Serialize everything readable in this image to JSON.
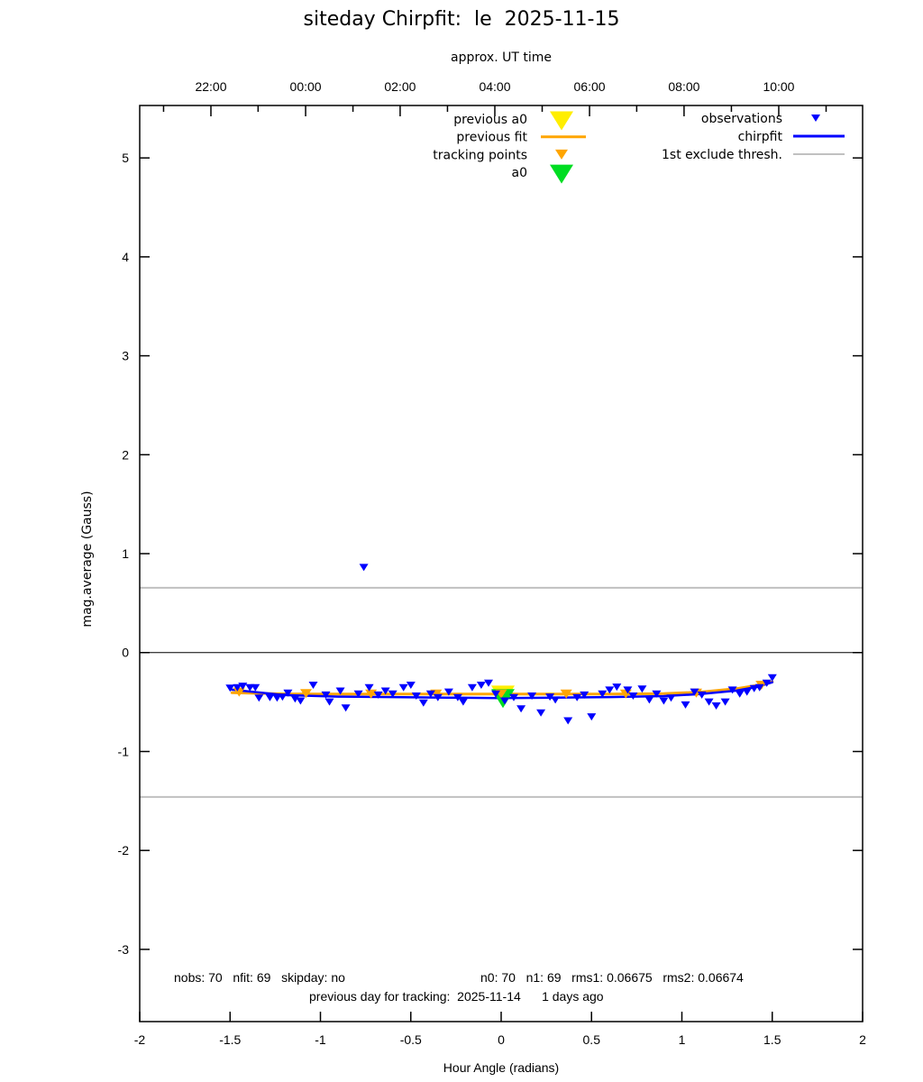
{
  "title": "siteday Chirpfit:  le  2025-11-15",
  "axes": {
    "top_label": "approx. UT time",
    "x_label": "Hour Angle (radians)",
    "y_label": "mag.average (Gauss)",
    "x_ticks": [
      {
        "label": "-2",
        "x": -2
      },
      {
        "label": "-1.5",
        "x": -1.5
      },
      {
        "label": "-1",
        "x": -1
      },
      {
        "label": "-0.5",
        "x": -0.5
      },
      {
        "label": "0",
        "x": 0
      },
      {
        "label": "0.5",
        "x": 0.5
      },
      {
        "label": "1",
        "x": 1
      },
      {
        "label": "1.5",
        "x": 1.5
      },
      {
        "label": "2",
        "x": 2
      }
    ],
    "y_ticks": [
      {
        "label": "-3",
        "y": -3
      },
      {
        "label": "-2",
        "y": -2
      },
      {
        "label": "-1",
        "y": -1
      },
      {
        "label": "0",
        "y": 0
      },
      {
        "label": "1",
        "y": 1
      },
      {
        "label": "2",
        "y": 2
      },
      {
        "label": "3",
        "y": 3
      },
      {
        "label": "4",
        "y": 4
      },
      {
        "label": "5",
        "y": 5
      }
    ],
    "ut_major_ticks": [
      {
        "label": "22:00",
        "x": -1.606
      },
      {
        "label": "00:00",
        "x": -1.082
      },
      {
        "label": "02:00",
        "x": -0.559
      },
      {
        "label": "04:00",
        "x": -0.035
      },
      {
        "label": "06:00",
        "x": 0.489
      },
      {
        "label": "08:00",
        "x": 1.012
      },
      {
        "label": "10:00",
        "x": 1.536
      }
    ],
    "ut_minor_ticks": [
      -1.868,
      -1.345,
      -0.82,
      -0.297,
      0.227,
      0.75,
      1.274,
      1.798
    ],
    "xlim": [
      -2,
      2
    ],
    "ylim": [
      -3.73,
      5.53
    ]
  },
  "legend": {
    "left": [
      {
        "label": "previous a0",
        "marker": "triangle-large",
        "color": "#ffee00",
        "name": "previous-a0"
      },
      {
        "label": "previous fit",
        "marker": "line",
        "color": "#ffa500",
        "name": "previous-fit"
      },
      {
        "label": "tracking points",
        "marker": "triangle-medium",
        "color": "#ffa500",
        "name": "tracking-points"
      },
      {
        "label": "a0",
        "marker": "triangle-large",
        "color": "#00dd22",
        "name": "a0"
      }
    ],
    "right": [
      {
        "label": "observations",
        "marker": "triangle-small",
        "color": "#0000ff",
        "name": "observations"
      },
      {
        "label": "chirpfit",
        "marker": "line",
        "color": "#0000ff",
        "name": "chirpfit"
      },
      {
        "label": "1st exclude thresh.",
        "marker": "line-thin",
        "color": "#c0c0c0",
        "name": "exclude-threshold"
      }
    ]
  },
  "stats": {
    "line1_left": "nobs: 70   nfit: 69   skipday: no",
    "line1_right": "n0: 70   n1: 69   rms1: 0.06675   rms2: 0.06674",
    "line2": "previous day for tracking:  2025-11-14      1 days ago"
  },
  "colors": {
    "observations": "#0000ff",
    "chirpfit": "#0000ff",
    "previous_fit": "#ffa500",
    "tracking_points": "#ffa500",
    "previous_a0": "#ffee00",
    "a0": "#00dd22",
    "exclude_threshold": "#c0c0c0",
    "zero_line": "#000000",
    "axis": "#000000"
  },
  "chart_data": {
    "type": "scatter",
    "title": "siteday Chirpfit:  le  2025-11-15",
    "xlabel": "Hour Angle (radians)",
    "ylabel": "mag.average (Gauss)",
    "x2label": "approx. UT time",
    "xlim": [
      -2,
      2
    ],
    "ylim": [
      -3.73,
      5.53
    ],
    "grid": false,
    "legend_position": "top-inside",
    "zero_line_y": 0,
    "exclude_threshold_y": [
      0.655,
      -1.46
    ],
    "series": [
      {
        "name": "observations",
        "type": "scatter",
        "marker": "triangle-down-small",
        "color": "#0000ff",
        "points": [
          [
            -1.5,
            -0.36
          ],
          [
            -1.46,
            -0.355
          ],
          [
            -1.43,
            -0.34
          ],
          [
            -1.39,
            -0.355
          ],
          [
            -1.36,
            -0.355
          ],
          [
            -1.34,
            -0.46
          ],
          [
            -1.28,
            -0.455
          ],
          [
            -1.24,
            -0.46
          ],
          [
            -1.21,
            -0.45
          ],
          [
            -1.18,
            -0.41
          ],
          [
            -1.14,
            -0.47
          ],
          [
            -1.11,
            -0.49
          ],
          [
            -1.04,
            -0.33
          ],
          [
            -0.97,
            -0.43
          ],
          [
            -0.95,
            -0.5
          ],
          [
            -0.89,
            -0.39
          ],
          [
            -0.86,
            -0.56
          ],
          [
            -0.79,
            -0.42
          ],
          [
            -0.76,
            0.86
          ],
          [
            -0.73,
            -0.355
          ],
          [
            -0.68,
            -0.43
          ],
          [
            -0.64,
            -0.39
          ],
          [
            -0.6,
            -0.42
          ],
          [
            -0.54,
            -0.355
          ],
          [
            -0.5,
            -0.33
          ],
          [
            -0.47,
            -0.44
          ],
          [
            -0.43,
            -0.51
          ],
          [
            -0.39,
            -0.42
          ],
          [
            -0.35,
            -0.455
          ],
          [
            -0.29,
            -0.4
          ],
          [
            -0.24,
            -0.455
          ],
          [
            -0.21,
            -0.5
          ],
          [
            -0.16,
            -0.355
          ],
          [
            -0.11,
            -0.33
          ],
          [
            -0.07,
            -0.31
          ],
          [
            -0.03,
            -0.42
          ],
          [
            0.02,
            -0.49
          ],
          [
            0.07,
            -0.455
          ],
          [
            0.11,
            -0.57
          ],
          [
            0.17,
            -0.44
          ],
          [
            0.22,
            -0.61
          ],
          [
            0.27,
            -0.45
          ],
          [
            0.3,
            -0.48
          ],
          [
            0.37,
            -0.69
          ],
          [
            0.42,
            -0.455
          ],
          [
            0.46,
            -0.43
          ],
          [
            0.5,
            -0.65
          ],
          [
            0.56,
            -0.42
          ],
          [
            0.6,
            -0.38
          ],
          [
            0.64,
            -0.35
          ],
          [
            0.7,
            -0.38
          ],
          [
            0.73,
            -0.44
          ],
          [
            0.78,
            -0.37
          ],
          [
            0.82,
            -0.48
          ],
          [
            0.86,
            -0.42
          ],
          [
            0.9,
            -0.49
          ],
          [
            0.94,
            -0.46
          ],
          [
            1.02,
            -0.53
          ],
          [
            1.07,
            -0.4
          ],
          [
            1.11,
            -0.43
          ],
          [
            1.15,
            -0.5
          ],
          [
            1.19,
            -0.54
          ],
          [
            1.24,
            -0.5
          ],
          [
            1.28,
            -0.38
          ],
          [
            1.32,
            -0.42
          ],
          [
            1.36,
            -0.4
          ],
          [
            1.4,
            -0.365
          ],
          [
            1.43,
            -0.355
          ],
          [
            1.47,
            -0.31
          ],
          [
            1.5,
            -0.255
          ]
        ]
      },
      {
        "name": "chirpfit",
        "type": "line",
        "color": "#0000ff",
        "width": 2.5,
        "points": [
          [
            -1.49,
            -0.375
          ],
          [
            -1.2,
            -0.43
          ],
          [
            -0.9,
            -0.445
          ],
          [
            -0.6,
            -0.45
          ],
          [
            -0.3,
            -0.455
          ],
          [
            0,
            -0.46
          ],
          [
            0.3,
            -0.455
          ],
          [
            0.6,
            -0.45
          ],
          [
            0.9,
            -0.44
          ],
          [
            1.1,
            -0.42
          ],
          [
            1.3,
            -0.385
          ],
          [
            1.42,
            -0.345
          ],
          [
            1.5,
            -0.3
          ]
        ]
      },
      {
        "name": "previous fit",
        "type": "line",
        "color": "#ffa500",
        "width": 3,
        "points": [
          [
            -1.49,
            -0.405
          ],
          [
            -1.2,
            -0.418
          ],
          [
            -0.9,
            -0.42
          ],
          [
            -0.6,
            -0.42
          ],
          [
            -0.3,
            -0.42
          ],
          [
            0,
            -0.42
          ],
          [
            0.3,
            -0.42
          ],
          [
            0.6,
            -0.42
          ],
          [
            0.9,
            -0.415
          ],
          [
            1.1,
            -0.4
          ],
          [
            1.3,
            -0.365
          ],
          [
            1.42,
            -0.33
          ],
          [
            1.5,
            -0.295
          ]
        ]
      },
      {
        "name": "tracking points",
        "type": "scatter",
        "marker": "triangle-down-medium",
        "color": "#ffa500",
        "points": [
          [
            -1.45,
            -0.4
          ],
          [
            -1.08,
            -0.415
          ],
          [
            -0.72,
            -0.42
          ],
          [
            -0.36,
            -0.42
          ],
          [
            0.0,
            -0.42
          ],
          [
            0.36,
            -0.42
          ],
          [
            0.69,
            -0.42
          ],
          [
            1.08,
            -0.41
          ],
          [
            1.44,
            -0.33
          ]
        ]
      },
      {
        "name": "previous a0",
        "type": "scatter",
        "marker": "triangle-down-large",
        "color": "#ffee00",
        "points": [
          [
            0.01,
            -0.43
          ]
        ]
      },
      {
        "name": "a0",
        "type": "scatter",
        "marker": "triangle-down-large",
        "color": "#00dd22",
        "points": [
          [
            0.01,
            -0.465
          ]
        ]
      },
      {
        "name": "1st exclude thresh.",
        "type": "hline",
        "color": "#c0c0c0",
        "width": 2,
        "y_values": [
          0.655,
          -1.46
        ]
      }
    ]
  }
}
